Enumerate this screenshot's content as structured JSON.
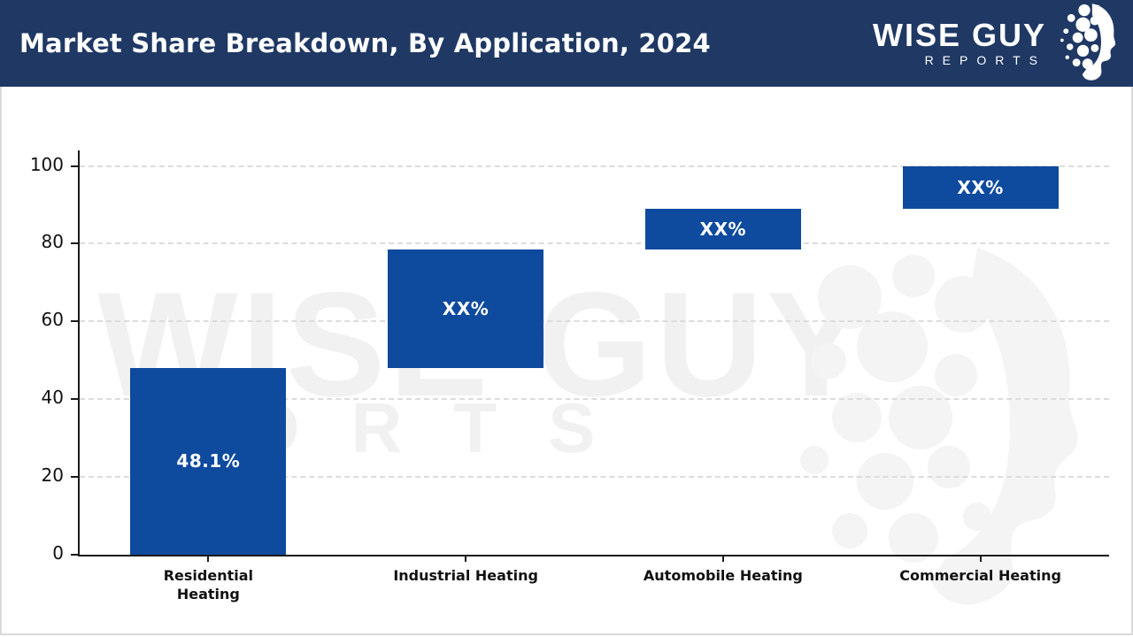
{
  "header": {
    "title": "Market Share Breakdown, By Application, 2024",
    "bg_color": "#1f3864",
    "logo": {
      "line1": "WISE GUY",
      "line2": "REPORTS"
    }
  },
  "watermark": {
    "line1": "WISE GUY",
    "line2": "PORTS"
  },
  "chart_data": {
    "type": "bar",
    "subtype": "waterfall",
    "title": "Market Share Breakdown, By Application, 2024",
    "xlabel": "",
    "ylabel": "",
    "categories": [
      "Residential\nHeating",
      "Industrial Heating",
      "Automobile Heating",
      "Commercial Heating"
    ],
    "segments": [
      {
        "category": "Residential Heating",
        "start": 0,
        "end": 48.1,
        "label": "48.1%"
      },
      {
        "category": "Industrial Heating",
        "start": 48.1,
        "end": 78.6,
        "label": "XX%"
      },
      {
        "category": "Automobile Heating",
        "start": 78.6,
        "end": 88.9,
        "label": "XX%"
      },
      {
        "category": "Commercial Heating",
        "start": 88.9,
        "end": 100,
        "label": "XX%"
      }
    ],
    "yticks": [
      0,
      20,
      40,
      60,
      80,
      100
    ],
    "ylim": [
      0,
      104
    ],
    "bar_color": "#0e4a9e",
    "grid": "horizontal-dashed",
    "grid_color": "#dcdcdc",
    "legend": "none"
  }
}
